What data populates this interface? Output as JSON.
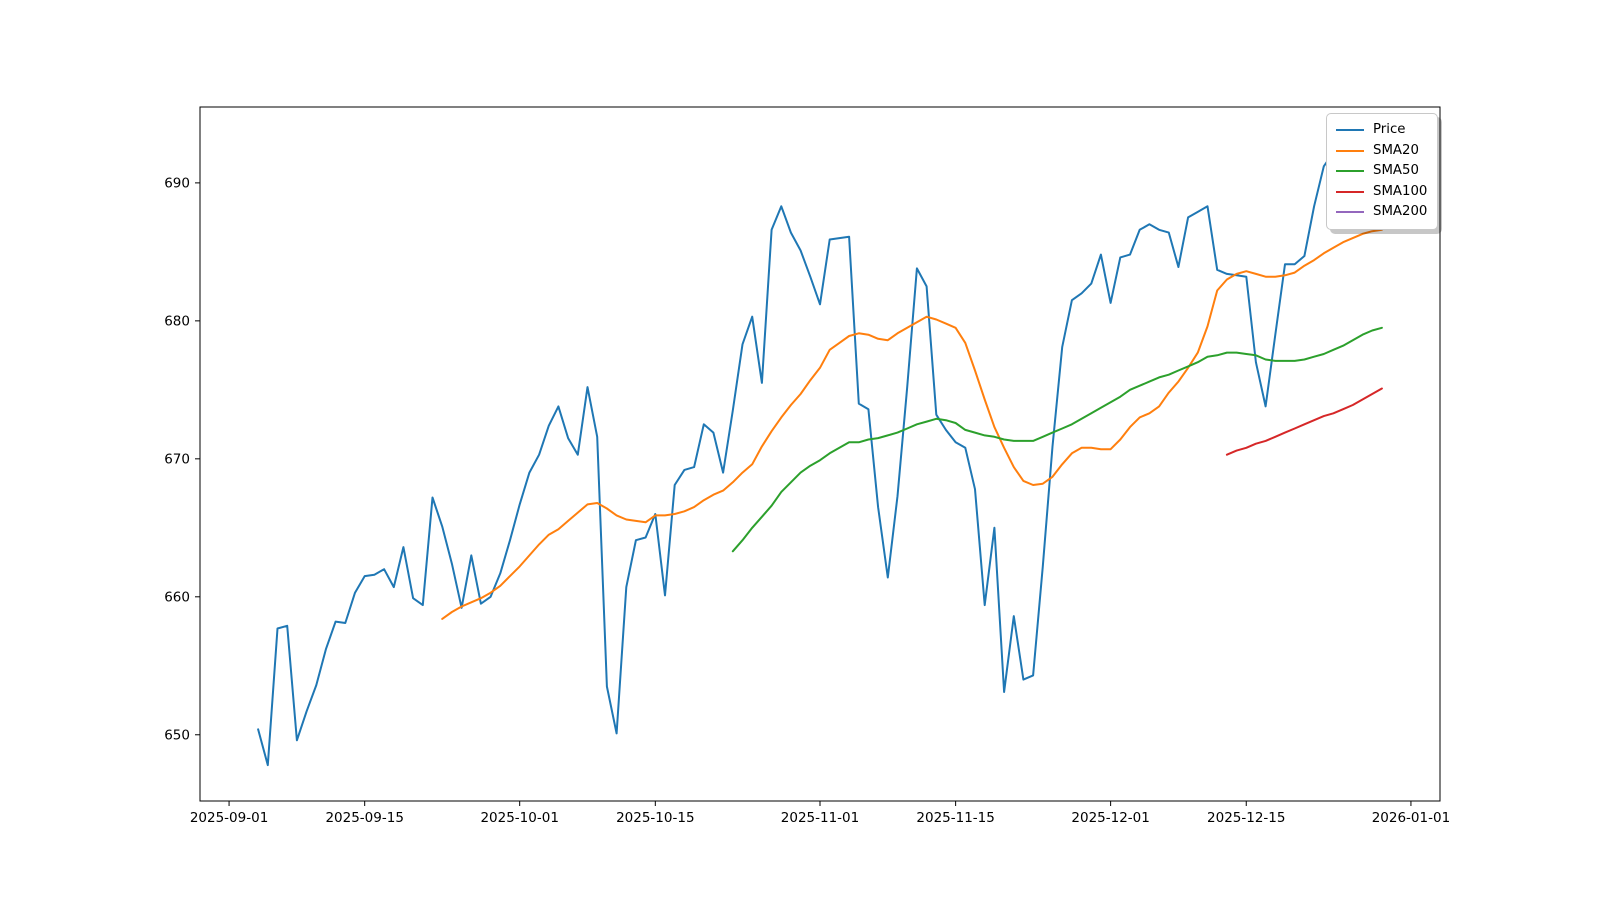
{
  "chart_data": {
    "type": "line",
    "title": "",
    "xlabel": "",
    "ylabel": "",
    "grid": false,
    "x_axis": {
      "lim": [
        "2025-08-29",
        "2026-01-04"
      ],
      "tick_labels": [
        "2025-09-01",
        "2025-09-15",
        "2025-10-01",
        "2025-10-15",
        "2025-11-01",
        "2025-11-15",
        "2025-12-01",
        "2025-12-15",
        "2026-01-01"
      ]
    },
    "y_axis": {
      "lim": [
        645.2,
        695.5
      ],
      "ticks": [
        650,
        660,
        670,
        680,
        690
      ]
    },
    "legend": {
      "position": "upper right",
      "entries": [
        "Price",
        "SMA20",
        "SMA50",
        "SMA100",
        "SMA200"
      ]
    },
    "series": [
      {
        "name": "Price",
        "color": "#1f77b4",
        "start_date": "2025-09-04",
        "frequency_days": 1,
        "values": [
          650.4,
          647.8,
          657.7,
          657.9,
          649.6,
          651.7,
          653.6,
          656.2,
          658.2,
          658.1,
          660.3,
          661.5,
          661.6,
          662.0,
          660.7,
          663.6,
          659.9,
          659.4,
          667.2,
          665.1,
          662.4,
          659.2,
          663.0,
          659.5,
          660.0,
          661.7,
          664.1,
          666.7,
          669.0,
          670.3,
          672.4,
          673.8,
          671.5,
          670.3,
          675.2,
          671.6,
          653.5,
          650.1,
          660.7,
          664.1,
          664.3,
          666.0,
          660.1,
          668.1,
          669.2,
          669.4,
          672.5,
          671.9,
          669.0,
          673.5,
          678.3,
          680.3,
          675.5,
          686.6,
          688.3,
          686.4,
          685.1,
          683.2,
          681.2,
          685.9,
          686.0,
          686.1,
          674.0,
          673.6,
          666.5,
          661.4,
          667.3,
          675.2,
          683.8,
          682.5,
          673.2,
          672.1,
          671.2,
          670.8,
          667.8,
          659.4,
          665.0,
          653.1,
          658.6,
          654.0,
          654.3,
          662.2,
          670.9,
          678.1,
          681.5,
          682.0,
          682.7,
          684.8,
          681.3,
          684.6,
          684.8,
          686.6,
          687.0,
          686.6,
          686.4,
          683.9,
          687.5,
          687.9,
          688.3,
          683.7,
          683.4,
          683.3,
          683.2,
          677.0,
          673.8,
          679.0,
          684.1,
          684.1,
          684.7,
          688.3,
          691.2,
          692.2,
          692.8,
          693.2,
          693.6,
          694.0,
          694.4
        ]
      },
      {
        "name": "SMA20",
        "color": "#ff7f0e",
        "start_date": "2025-09-23",
        "frequency_days": 1,
        "values": [
          658.4,
          658.9,
          659.3,
          659.6,
          659.9,
          660.3,
          660.8,
          661.5,
          662.2,
          663.0,
          663.8,
          664.5,
          664.9,
          665.5,
          666.1,
          666.7,
          666.8,
          666.4,
          665.9,
          665.6,
          665.5,
          665.4,
          665.9,
          665.9,
          666.0,
          666.2,
          666.5,
          667.0,
          667.4,
          667.7,
          668.3,
          669.0,
          669.6,
          670.9,
          672.0,
          673.0,
          673.9,
          674.7,
          675.7,
          676.6,
          677.9,
          678.4,
          678.9,
          679.1,
          679.0,
          678.7,
          678.6,
          679.1,
          679.5,
          679.9,
          680.3,
          680.1,
          679.8,
          679.5,
          678.4,
          676.4,
          674.3,
          672.3,
          670.8,
          669.4,
          668.4,
          668.1,
          668.2,
          668.7,
          669.6,
          670.4,
          670.8,
          670.8,
          670.7,
          670.7,
          671.4,
          672.3,
          673.0,
          673.3,
          673.8,
          674.8,
          675.6,
          676.6,
          677.7,
          679.6,
          682.2,
          683.0,
          683.4,
          683.6,
          683.4,
          683.2,
          683.2,
          683.3,
          683.5,
          684.0,
          684.4,
          684.9,
          685.3,
          685.7,
          686.0,
          686.3,
          686.5,
          686.6
        ]
      },
      {
        "name": "SMA50",
        "color": "#2ca02c",
        "start_date": "2025-10-23",
        "frequency_days": 1,
        "values": [
          663.3,
          664.1,
          665.0,
          665.8,
          666.6,
          667.6,
          668.3,
          669.0,
          669.5,
          669.9,
          670.4,
          670.8,
          671.2,
          671.2,
          671.4,
          671.5,
          671.7,
          671.9,
          672.2,
          672.5,
          672.7,
          672.9,
          672.8,
          672.6,
          672.1,
          671.9,
          671.7,
          671.6,
          671.4,
          671.3,
          671.3,
          671.3,
          671.6,
          671.9,
          672.2,
          672.5,
          672.9,
          673.3,
          673.7,
          674.1,
          674.5,
          675.0,
          675.3,
          675.6,
          675.9,
          676.1,
          676.4,
          676.7,
          677.0,
          677.4,
          677.5,
          677.7,
          677.7,
          677.6,
          677.5,
          677.2,
          677.1,
          677.1,
          677.1,
          677.2,
          677.4,
          677.6,
          677.9,
          678.2,
          678.6,
          679.0,
          679.3,
          679.5
        ]
      },
      {
        "name": "SMA100",
        "color": "#d62728",
        "start_date": "2025-12-13",
        "frequency_days": 1,
        "values": [
          670.3,
          670.6,
          670.8,
          671.1,
          671.3,
          671.6,
          671.9,
          672.2,
          672.5,
          672.8,
          673.1,
          673.3,
          673.6,
          673.9,
          674.3,
          674.7,
          675.1
        ]
      },
      {
        "name": "SMA200",
        "color": "#9467bd",
        "start_date": null,
        "frequency_days": 1,
        "values": []
      }
    ]
  }
}
